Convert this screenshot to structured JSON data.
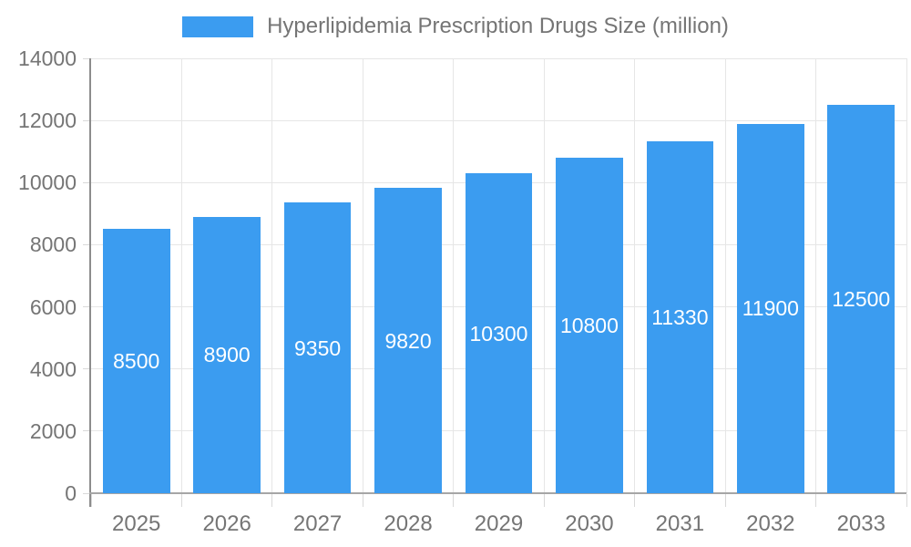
{
  "chart_data": {
    "type": "bar",
    "title": "Hyperlipidemia Prescription Drugs Size (million)",
    "categories": [
      "2025",
      "2026",
      "2027",
      "2028",
      "2029",
      "2030",
      "2031",
      "2032",
      "2033"
    ],
    "values": [
      8500,
      8900,
      9350,
      9820,
      10300,
      10800,
      11330,
      11900,
      12500
    ],
    "xlabel": "",
    "ylabel": "",
    "ylim": [
      0,
      14000
    ],
    "ytick_step": 2000,
    "ytick_labels": [
      "0",
      "2000",
      "4000",
      "6000",
      "8000",
      "10000",
      "12000",
      "14000"
    ],
    "grid": true,
    "legend_position": "top",
    "legend_label": "Hyperlipidemia Prescription Drugs Size (million)",
    "colors": {
      "bar": "#3b9cf0",
      "value_label": "#ffffff",
      "axis_text": "#757575",
      "gridline": "#e6e6e6",
      "y_axis_line": "#8c8c8c",
      "x_axis_line": "#a6a6a6",
      "tick": "#d9d9d9"
    }
  }
}
